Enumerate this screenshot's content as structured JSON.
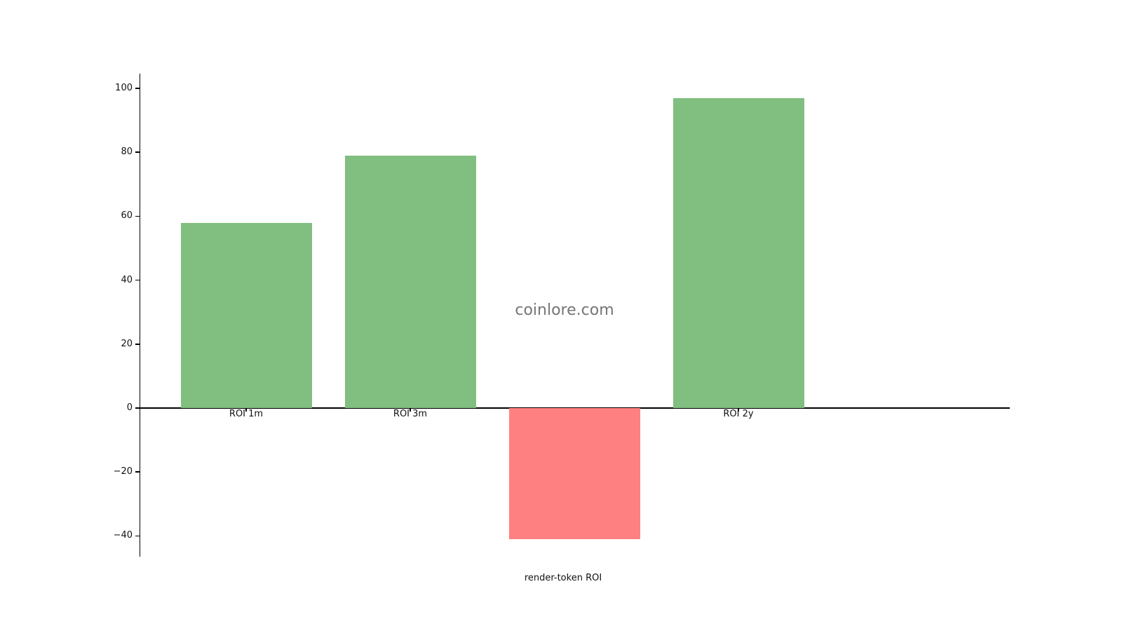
{
  "chart_data": {
    "type": "bar",
    "title": "",
    "xlabel": "render-token ROI",
    "ylabel": "",
    "categories": [
      "ROI 1m",
      "ROI 3m",
      "",
      "ROI 2y"
    ],
    "values": [
      58,
      79,
      -41,
      97
    ],
    "bar_colors": [
      "#80BF80",
      "#80BF80",
      "#FF8080",
      "#80BF80"
    ],
    "positive_color": "#80BF80",
    "negative_color": "#FF8080",
    "yticks": [
      {
        "label": "100",
        "value": 100
      },
      {
        "label": "80",
        "value": 80
      },
      {
        "label": "60",
        "value": 60
      },
      {
        "label": "40",
        "value": 40
      },
      {
        "label": "20",
        "value": 20
      },
      {
        "label": "0",
        "value": 0
      },
      {
        "label": "−20",
        "value": -20
      },
      {
        "label": "−40",
        "value": -40
      }
    ],
    "ylim": [
      -46,
      105
    ],
    "grid": false,
    "legend": null,
    "axis_color": "#000000",
    "tick_label_color": "#111111"
  },
  "watermark": {
    "text": "coinlore.com",
    "color": "#757575"
  }
}
